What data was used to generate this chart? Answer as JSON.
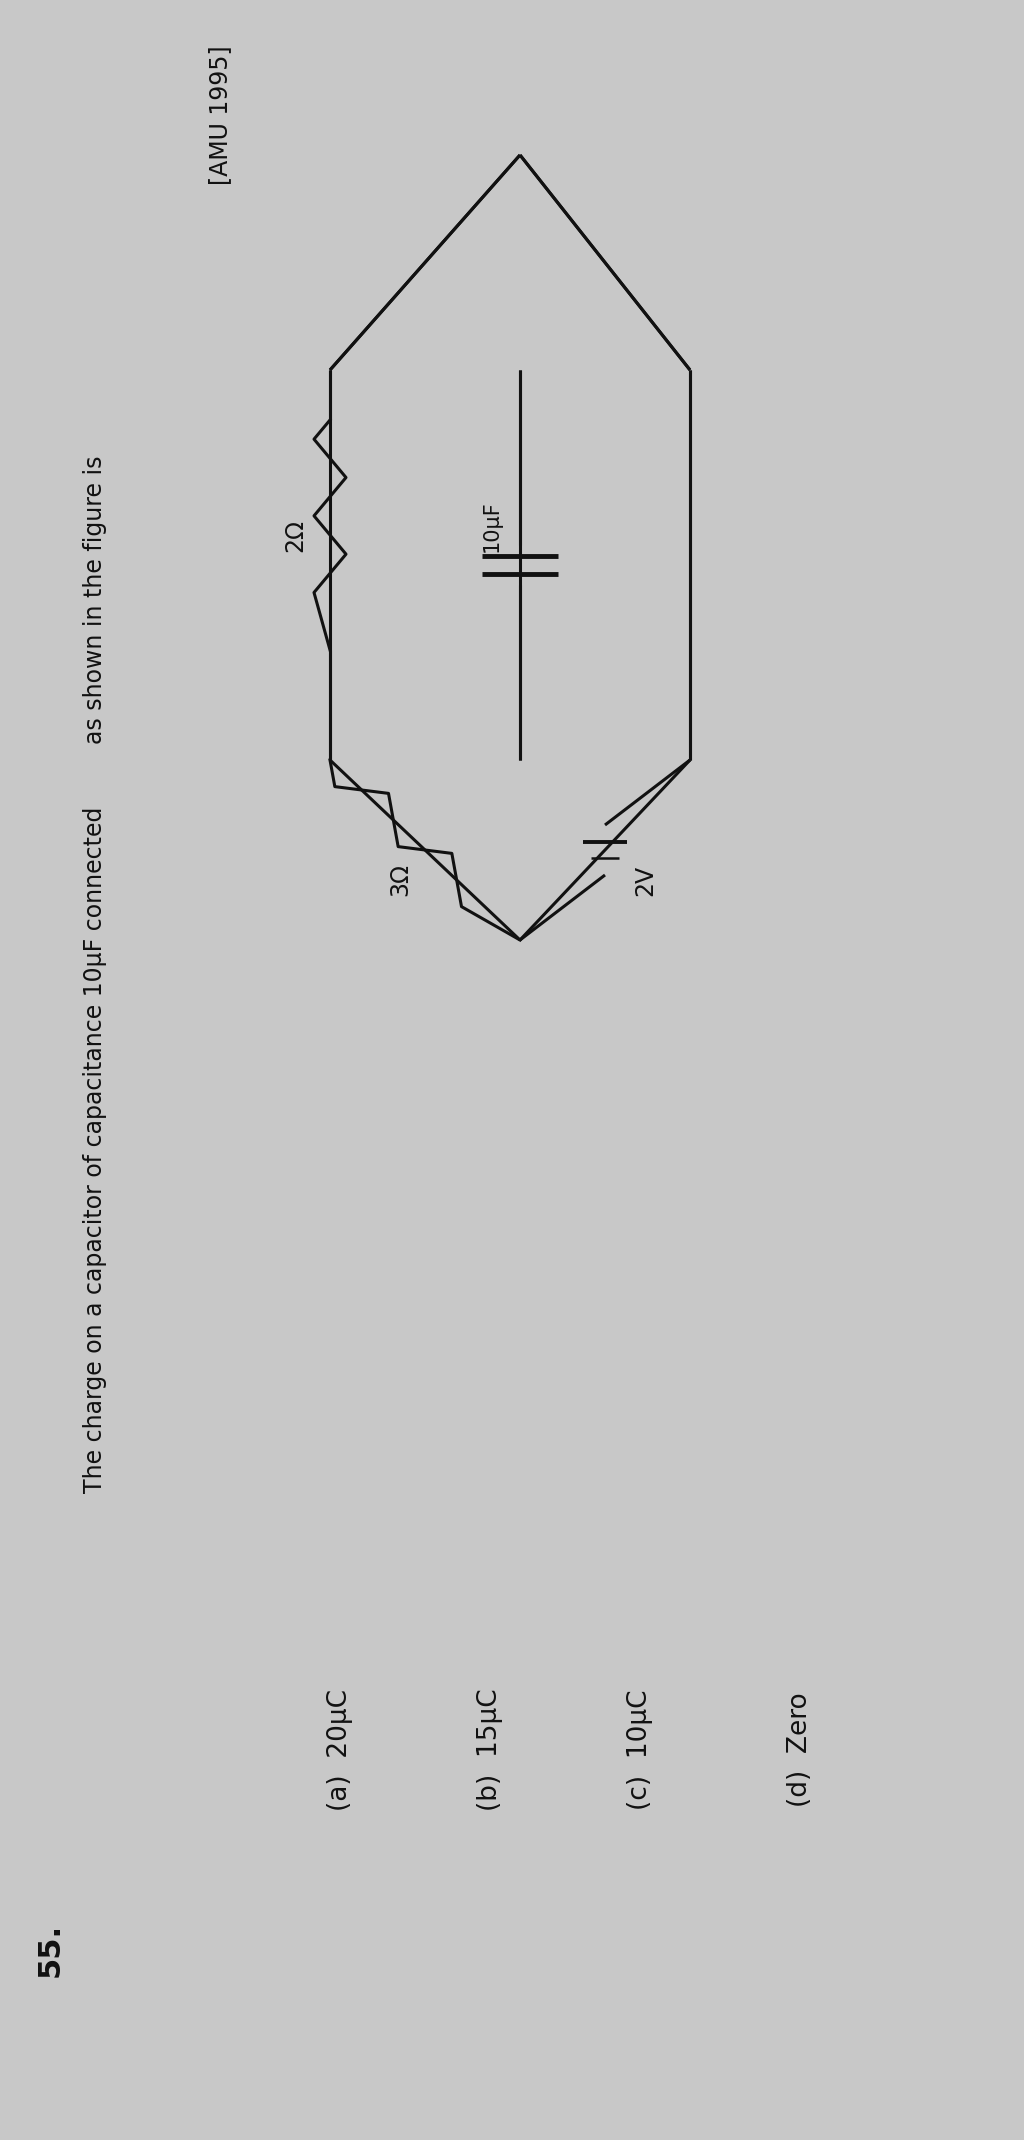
{
  "question_number": "55.",
  "question_text": "The charge on a capacitor of capacitance 10μF connected",
  "question_text2": "as shown in the figure is",
  "reference": "[AMU 1995]",
  "options": [
    "(a)  20μC",
    "(b)  15μC",
    "(c)  10μC",
    "(d)  Zero"
  ],
  "bg_color": "#c8c8c8",
  "text_color": "#111111",
  "circuit_color": "#111111"
}
